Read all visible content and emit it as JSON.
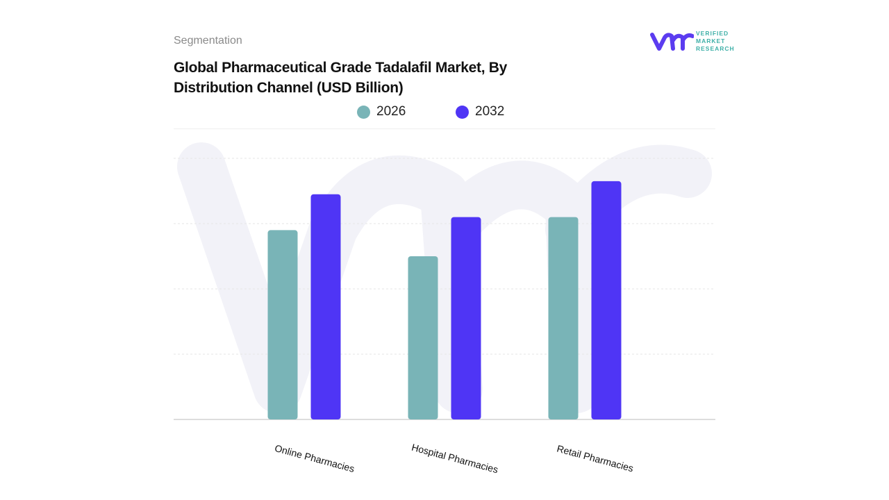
{
  "header": {
    "section": "Segmentation",
    "title": "Global Pharmaceutical Grade Tadalafil Market, By Distribution Channel (USD Billion)"
  },
  "logo": {
    "text": [
      "VERIFIED",
      "MARKET",
      "RESEARCH"
    ],
    "mark": "vmr"
  },
  "chart_data": {
    "type": "bar",
    "title": "Global Pharmaceutical Grade Tadalafil Market, By Distribution Channel (USD Billion)",
    "categories": [
      "Online Pharmacies",
      "Hospital Pharmacies",
      "Retail Pharmacies"
    ],
    "series": [
      {
        "name": "2026",
        "color": "#79b4b7",
        "values": [
          2.9,
          2.5,
          3.1
        ]
      },
      {
        "name": "2032",
        "color": "#4f35f5",
        "values": [
          3.45,
          3.1,
          3.65
        ]
      }
    ],
    "ylim": [
      0,
      4
    ],
    "grid": true,
    "legend": "top",
    "note": "relative values; y-axis has no printed tick labels"
  }
}
